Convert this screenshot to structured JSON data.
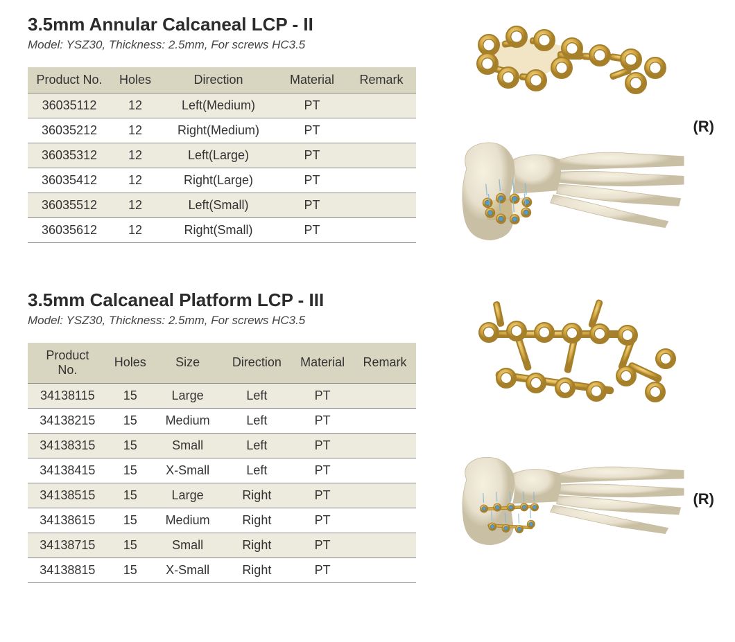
{
  "colors": {
    "header_bg": "#d8d5c0",
    "row_odd_bg": "#edeade",
    "row_even_bg": "#ffffff",
    "border": "#888888",
    "title_color": "#2b2b2b",
    "text_color": "#333333",
    "plate_gold": "#d4a943",
    "plate_gold_light": "#e8c86d",
    "plate_gold_dark": "#a67f2a",
    "bone_color": "#e8e0cd",
    "bone_shadow": "#c9bfa5",
    "screw_blue": "#5a9bc4"
  },
  "section1": {
    "title": "3.5mm Annular Calcaneal LCP - II",
    "subtitle": "Model: YSZ30, Thickness: 2.5mm, For screws HC3.5",
    "r_label": "(R)",
    "columns": [
      "Product No.",
      "Holes",
      "Direction",
      "Material",
      "Remark"
    ],
    "col_widths": [
      "120px",
      "70px",
      "170px",
      "100px",
      "100px"
    ],
    "rows": [
      [
        "36035112",
        "12",
        "Left(Medium)",
        "PT",
        ""
      ],
      [
        "36035212",
        "12",
        "Right(Medium)",
        "PT",
        ""
      ],
      [
        "36035312",
        "12",
        "Left(Large)",
        "PT",
        ""
      ],
      [
        "36035412",
        "12",
        "Right(Large)",
        "PT",
        ""
      ],
      [
        "36035512",
        "12",
        "Left(Small)",
        "PT",
        ""
      ],
      [
        "36035612",
        "12",
        "Right(Small)",
        "PT",
        ""
      ]
    ]
  },
  "section2": {
    "title": "3.5mm Calcaneal Platform LCP - III",
    "subtitle": "Model: YSZ30, Thickness: 2.5mm, For screws HC3.5",
    "r_label": "(R)",
    "columns": [
      "Product No.",
      "Holes",
      "Size",
      "Direction",
      "Material",
      "Remark"
    ],
    "col_widths": [
      "115px",
      "65px",
      "100px",
      "100px",
      "90px",
      "90px"
    ],
    "rows": [
      [
        "34138115",
        "15",
        "Large",
        "Left",
        "PT",
        ""
      ],
      [
        "34138215",
        "15",
        "Medium",
        "Left",
        "PT",
        ""
      ],
      [
        "34138315",
        "15",
        "Small",
        "Left",
        "PT",
        ""
      ],
      [
        "34138415",
        "15",
        "X-Small",
        "Left",
        "PT",
        ""
      ],
      [
        "34138515",
        "15",
        "Large",
        "Right",
        "PT",
        ""
      ],
      [
        "34138615",
        "15",
        "Medium",
        "Right",
        "PT",
        ""
      ],
      [
        "34138715",
        "15",
        "Small",
        "Right",
        "PT",
        ""
      ],
      [
        "34138815",
        "15",
        "X-Small",
        "Right",
        "PT",
        ""
      ]
    ]
  }
}
